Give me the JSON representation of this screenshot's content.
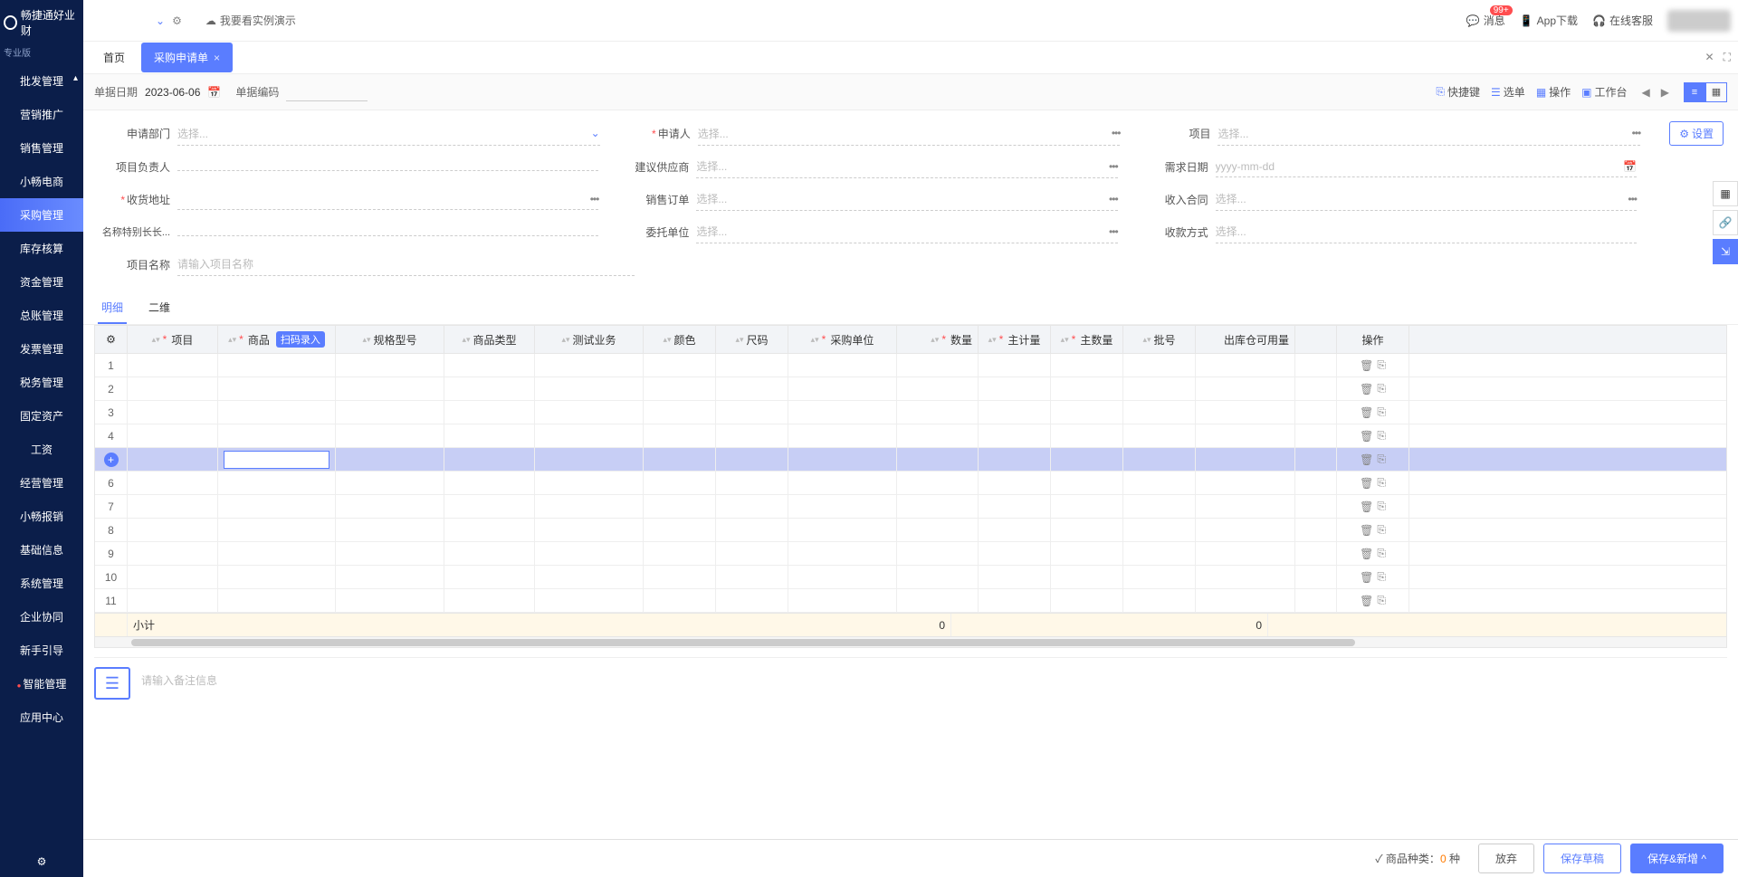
{
  "logo": {
    "text": "畅捷通好业财",
    "sub": "专业版"
  },
  "sidebar": [
    {
      "label": "批发管理",
      "expanded": true
    },
    {
      "label": "营销推广"
    },
    {
      "label": "销售管理"
    },
    {
      "label": "小畅电商"
    },
    {
      "label": "采购管理",
      "active": true
    },
    {
      "label": "库存核算"
    },
    {
      "label": "资金管理"
    },
    {
      "label": "总账管理"
    },
    {
      "label": "发票管理"
    },
    {
      "label": "税务管理"
    },
    {
      "label": "固定资产"
    },
    {
      "label": "工资"
    },
    {
      "label": "经营管理"
    },
    {
      "label": "小畅报销"
    },
    {
      "label": "基础信息"
    },
    {
      "label": "系统管理"
    },
    {
      "label": "企业协同"
    },
    {
      "label": "新手引导"
    },
    {
      "label": "智能管理",
      "dot": true
    },
    {
      "label": "应用中心"
    }
  ],
  "topbar": {
    "org": "　　　　",
    "demo": "我要看实例演示",
    "msg": "消息",
    "msg_badge": "99+",
    "app": "App下载",
    "svc": "在线客服"
  },
  "tabs": [
    {
      "label": "首页"
    },
    {
      "label": "采购申请单",
      "active": true,
      "closable": true
    }
  ],
  "toolbar": {
    "date_label": "单据日期",
    "date": "2023-06-06",
    "code_label": "单据编码",
    "shortcut": "快捷键",
    "select": "选单",
    "operate": "操作",
    "workbench": "工作台"
  },
  "form": {
    "dept": {
      "label": "申请部门",
      "ph": "选择..."
    },
    "person": {
      "label": "申请人",
      "ph": "选择...",
      "req": true
    },
    "project": {
      "label": "项目",
      "ph": "选择..."
    },
    "owner": {
      "label": "项目负责人",
      "ph": ""
    },
    "vendor": {
      "label": "建议供应商",
      "ph": "选择..."
    },
    "need": {
      "label": "需求日期",
      "ph": "yyyy-mm-dd"
    },
    "addr": {
      "label": "收货地址",
      "ph": "",
      "req": true
    },
    "sales": {
      "label": "销售订单",
      "ph": "选择..."
    },
    "income": {
      "label": "收入合同",
      "ph": "选择..."
    },
    "long": {
      "label": "名称特别长长...",
      "ph": ""
    },
    "entrust": {
      "label": "委托单位",
      "ph": "选择..."
    },
    "pay": {
      "label": "收款方式",
      "ph": "选择..."
    },
    "pname": {
      "label": "项目名称",
      "ph": "请输入项目名称"
    },
    "setting": "设置"
  },
  "dtabs": [
    {
      "label": "明细",
      "active": true
    },
    {
      "label": "二维"
    }
  ],
  "columns": {
    "project": "项目",
    "product": "商品",
    "scan": "扫码录入",
    "spec": "规格型号",
    "type": "商品类型",
    "test": "测试业务",
    "color": "颜色",
    "size": "尺码",
    "unit": "采购单位",
    "qty": "数量",
    "munit": "主计量",
    "mqty": "主数量",
    "batch": "批号",
    "avail": "出库仓可用量",
    "action": "操作"
  },
  "rows": 11,
  "highlight_row": 5,
  "subtotal": {
    "label": "小计",
    "qty": "0",
    "avail": "0"
  },
  "remarks_ph": "请输入备注信息",
  "footer": {
    "kinds_lbl": "商品种类：",
    "kinds_val": "0",
    "kinds_unit": " 种",
    "discard": "放弃",
    "draft": "保存草稿",
    "save": "保存&新增"
  }
}
